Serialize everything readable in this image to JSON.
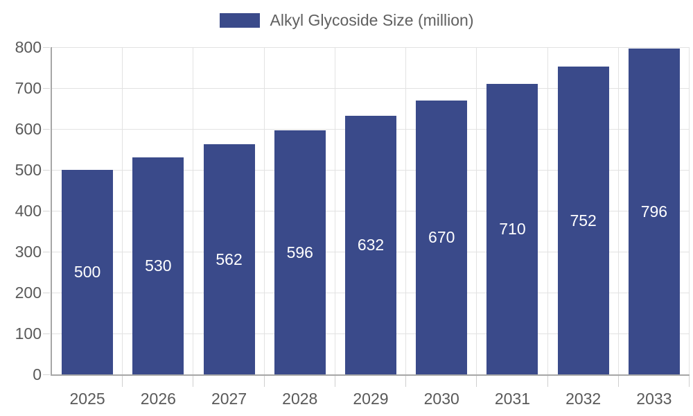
{
  "chart_data": {
    "type": "bar",
    "legend": "Alkyl Glycoside Size (million)",
    "categories": [
      "2025",
      "2026",
      "2027",
      "2028",
      "2029",
      "2030",
      "2031",
      "2032",
      "2033"
    ],
    "values": [
      500,
      530,
      562,
      596,
      632,
      670,
      710,
      752,
      796
    ],
    "title": "",
    "xlabel": "",
    "ylabel": "",
    "ylim": [
      0,
      800
    ],
    "y_ticks": [
      0,
      100,
      200,
      300,
      400,
      500,
      600,
      700,
      800
    ],
    "grid": true,
    "legend_position": "top-center",
    "value_labels": "inside-center"
  },
  "colors": {
    "bar": "#3A4A8A",
    "value_label": "#ffffff",
    "axis_text": "#595959",
    "legend_text": "#606060",
    "gridline": "#e2e2e2",
    "axis_line": "#a6a6a6",
    "background": "#ffffff"
  }
}
